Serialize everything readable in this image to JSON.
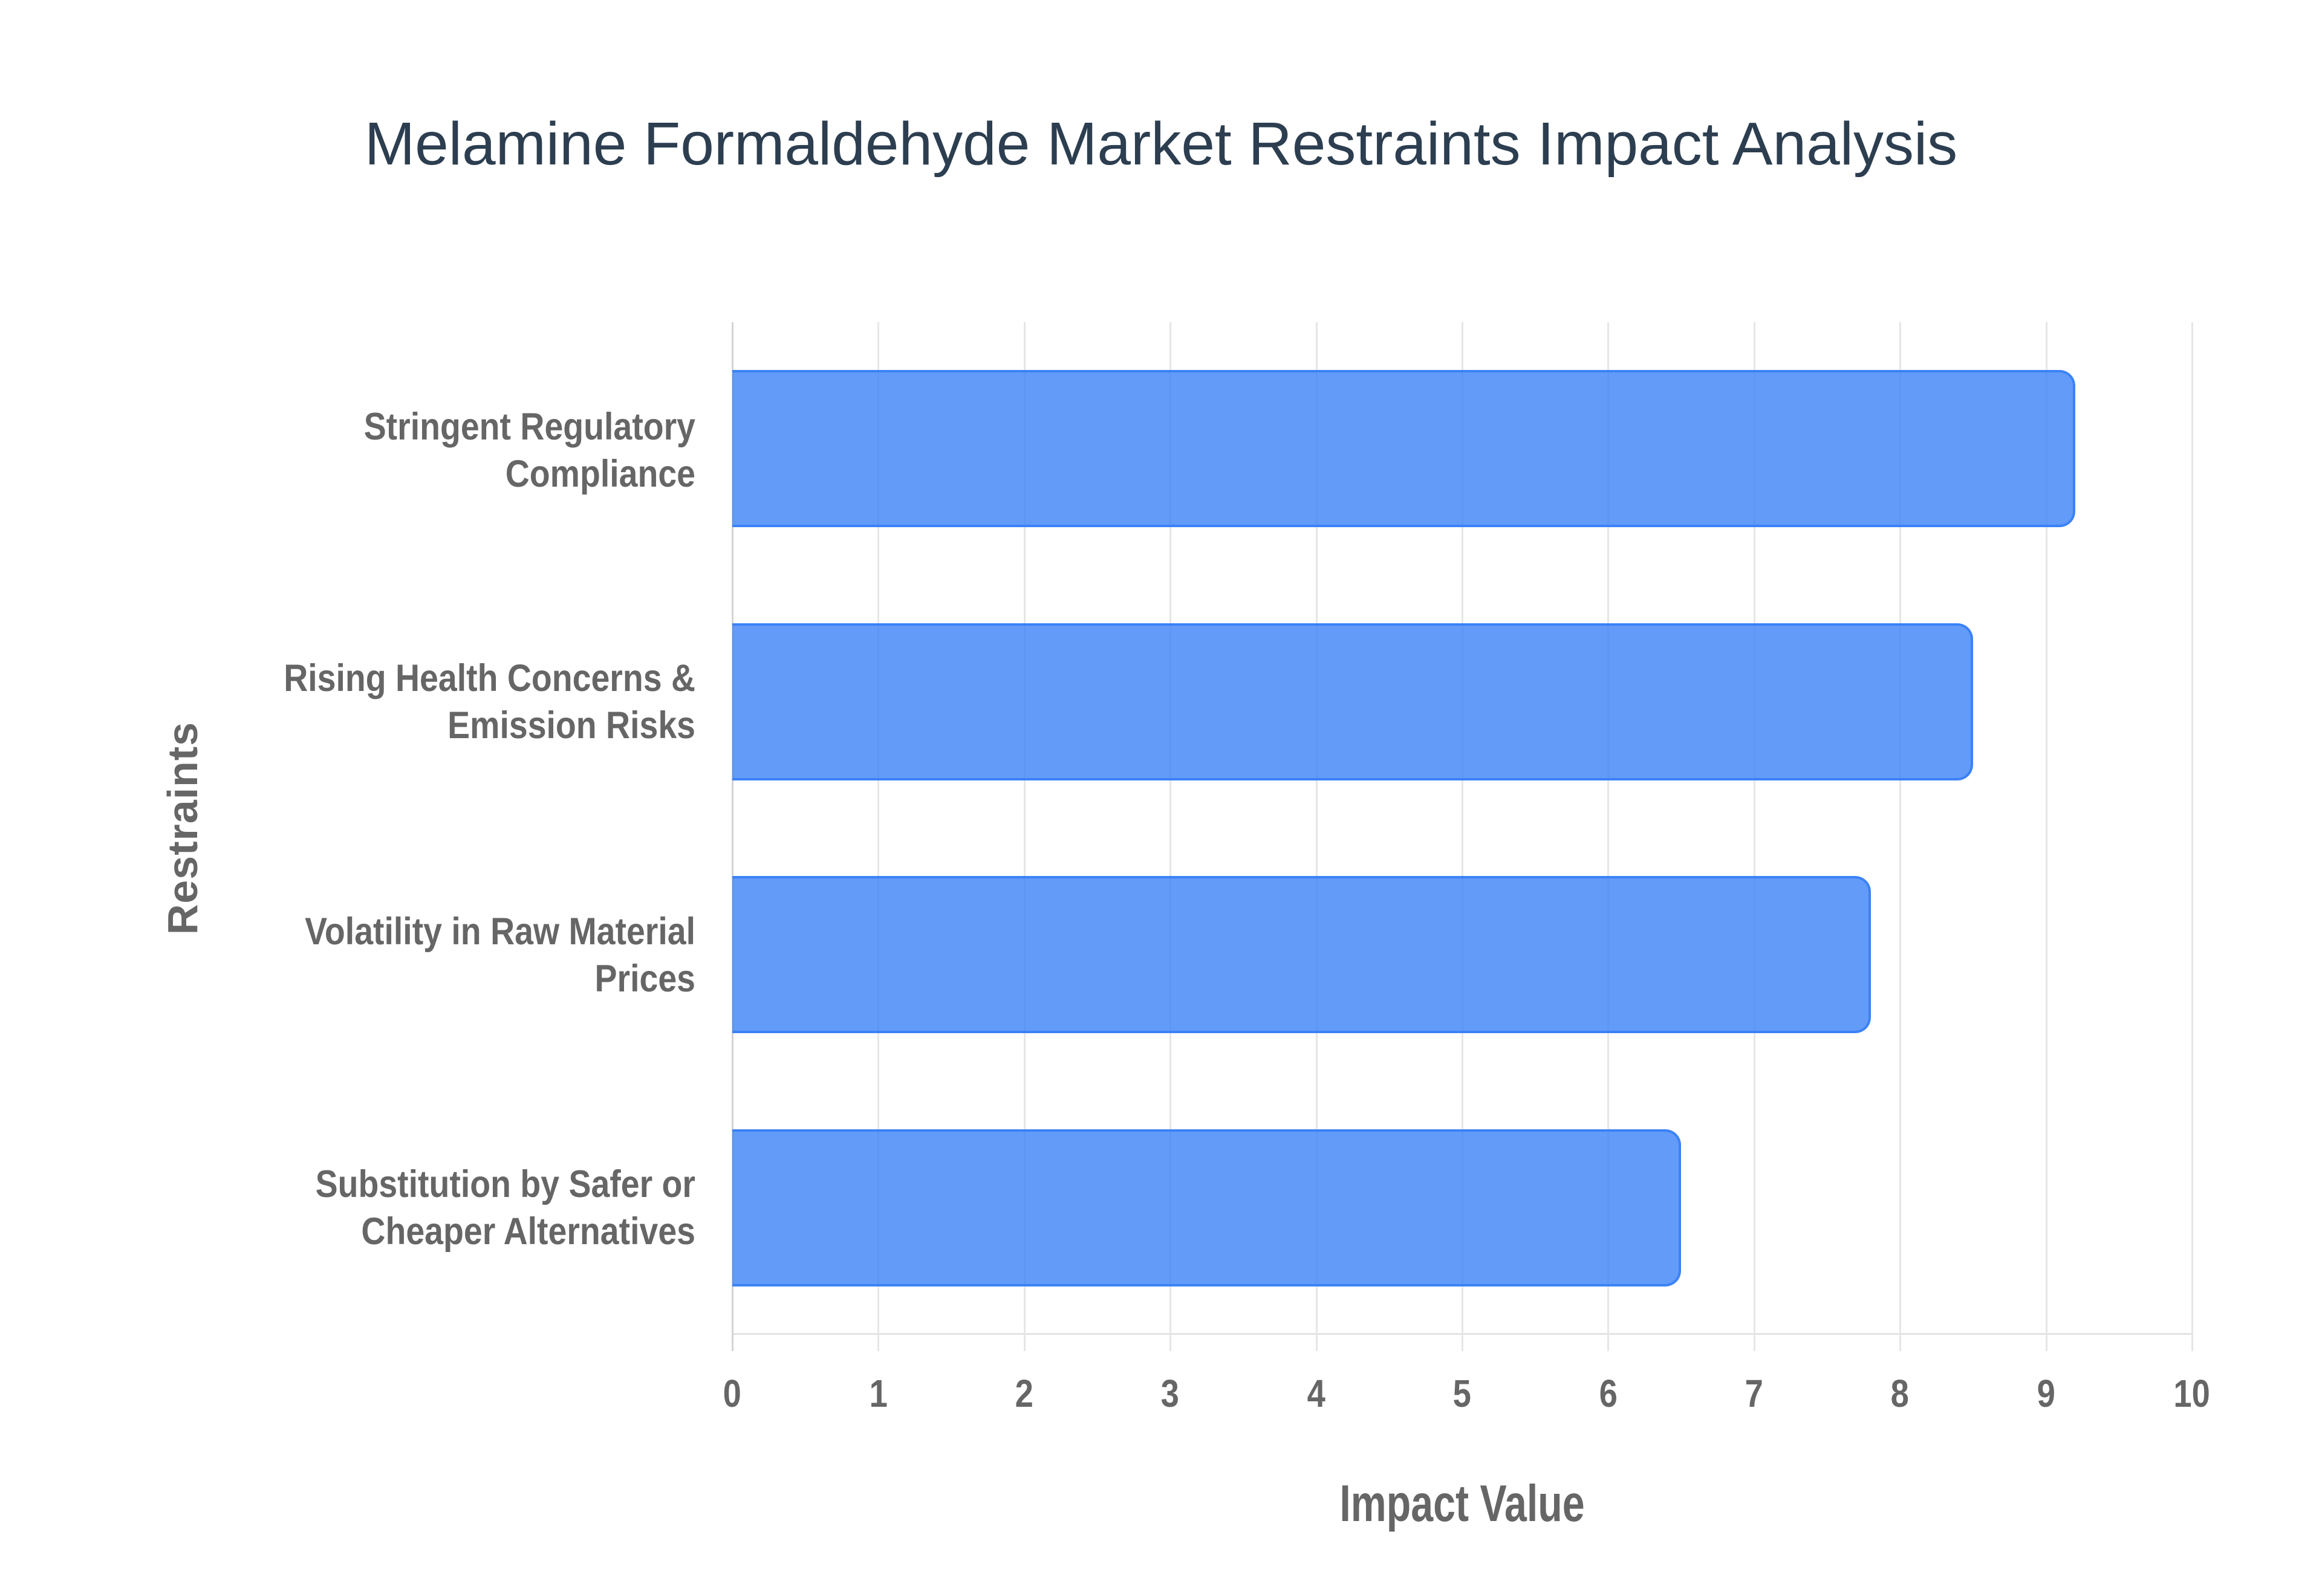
{
  "chart_data": {
    "type": "bar",
    "orientation": "horizontal",
    "title": "Melamine Formaldehyde Market Restraints Impact Analysis",
    "xlabel": "Impact Value",
    "ylabel": "Restraints",
    "categories": [
      "Stringent Regulatory Compliance",
      "Rising Health Concerns & Emission Risks",
      "Volatility in Raw Material Prices",
      "Substitution by Safer or Cheaper Alternatives"
    ],
    "category_lines": [
      [
        "Stringent Regulatory",
        "Compliance"
      ],
      [
        "Rising Health Concerns &",
        "Emission Risks"
      ],
      [
        "Volatility in Raw Material",
        "Prices"
      ],
      [
        "Substitution by Safer or",
        "Cheaper Alternatives"
      ]
    ],
    "values": [
      9.2,
      8.5,
      7.8,
      6.5
    ],
    "xlim": [
      0,
      10
    ],
    "xticks": [
      "0",
      "1",
      "2",
      "3",
      "4",
      "5",
      "6",
      "7",
      "8",
      "9",
      "10"
    ],
    "grid": true,
    "legend": "none",
    "colors": {
      "bar_fill": "rgba(59,130,246,0.8)",
      "bar_border": "#3b82f6",
      "title": "#2c3e50",
      "axis_text": "#666666",
      "grid": "#e6e6e6"
    }
  }
}
